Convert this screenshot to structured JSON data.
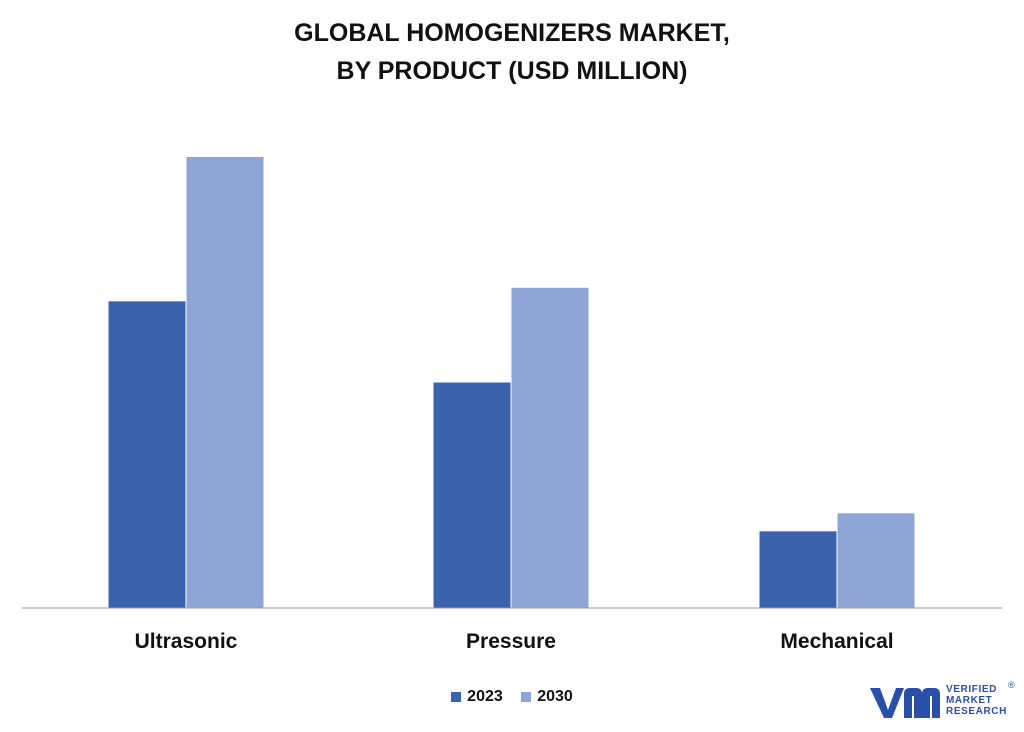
{
  "title": {
    "line1": "GLOBAL HOMOGENIZERS MARKET,",
    "line2": "BY PRODUCT (USD MILLION)"
  },
  "colors": {
    "2023": "#3b62ad",
    "2030": "#8fa5d6",
    "axis": "#999999"
  },
  "chart_data": {
    "type": "bar",
    "title": "GLOBAL HOMOGENIZERS MARKET, BY PRODUCT (USD MILLION)",
    "categories": [
      "Ultrasonic",
      "Pressure",
      "Mechanical"
    ],
    "series": [
      {
        "name": "2023",
        "values": [
          68,
          50,
          17
        ]
      },
      {
        "name": "2030",
        "values": [
          100,
          71,
          21
        ]
      }
    ],
    "xlabel": "",
    "ylabel": "",
    "ylim": [
      0,
      100
    ],
    "grid": false,
    "legend": "bottom"
  },
  "legend": {
    "items": [
      "2023",
      "2030"
    ]
  },
  "logo": {
    "brand_lines": [
      "VERIFIED",
      "MARKET",
      "RESEARCH"
    ],
    "registered": "®"
  }
}
